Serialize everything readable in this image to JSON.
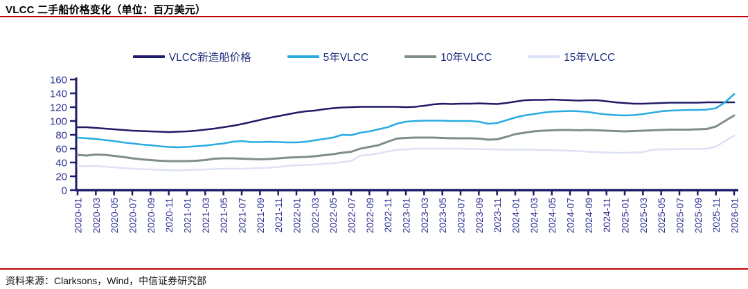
{
  "title": "VLCC 二手船价格变化（单位：百万美元）",
  "source_note": "资料来源：Clarksons，Wind，中信证券研究部",
  "colors": {
    "accent_red": "#c00000",
    "axis_line": "#1f1b67",
    "axis_text": "#2e3192",
    "legend_text": "#1f2d7b",
    "title_text": "#000000",
    "footer_text": "#111111",
    "background": "#ffffff"
  },
  "chart_data": {
    "type": "line",
    "title": "VLCC 二手船价格变化（单位：百万美元）",
    "xlabel": "",
    "ylabel": "",
    "unit": "百万美元",
    "ylim": [
      0,
      160
    ],
    "y_ticks": [
      0,
      20,
      40,
      60,
      80,
      100,
      120,
      140,
      160
    ],
    "x_tick_every": 2,
    "grid": false,
    "legend_position": "top-center",
    "x": [
      "2020-01",
      "2020-02",
      "2020-03",
      "2020-04",
      "2020-05",
      "2020-06",
      "2020-07",
      "2020-08",
      "2020-09",
      "2020-10",
      "2020-11",
      "2020-12",
      "2021-01",
      "2021-02",
      "2021-03",
      "2021-04",
      "2021-05",
      "2021-06",
      "2021-07",
      "2021-08",
      "2021-09",
      "2021-10",
      "2021-11",
      "2021-12",
      "2022-01",
      "2022-02",
      "2022-03",
      "2022-04",
      "2022-05",
      "2022-06",
      "2022-07",
      "2022-08",
      "2022-09",
      "2022-10",
      "2022-11",
      "2022-12",
      "2023-01",
      "2023-02",
      "2023-03",
      "2023-04",
      "2023-05",
      "2023-06",
      "2023-07",
      "2023-08",
      "2023-09",
      "2023-10",
      "2023-11",
      "2023-12",
      "2024-01",
      "2024-02",
      "2024-03",
      "2024-04",
      "2024-05",
      "2024-06",
      "2024-07",
      "2024-08",
      "2024-09",
      "2024-10",
      "2024-11",
      "2024-12",
      "2025-01",
      "2025-02",
      "2025-03",
      "2025-04",
      "2025-05",
      "2025-06",
      "2025-07",
      "2025-08",
      "2025-09",
      "2025-10",
      "2025-11",
      "2025-12",
      "2026-01"
    ],
    "series": [
      {
        "name": "VLCC新造船价格",
        "color": "#1f1b67",
        "values": [
          91,
          91,
          90,
          89,
          88,
          87,
          86,
          85.5,
          85,
          84.5,
          84,
          84.5,
          85,
          86,
          87.5,
          89,
          91,
          93,
          95.5,
          98.5,
          101.5,
          104.5,
          107,
          109.5,
          112,
          114,
          115,
          117,
          118.5,
          119.5,
          120,
          120.5,
          120.5,
          120.5,
          120.5,
          120.5,
          120,
          120.5,
          122,
          124,
          125,
          124.5,
          125,
          125,
          125.5,
          125,
          124.5,
          126,
          128,
          130,
          130.5,
          130.5,
          131,
          130.5,
          130,
          129.5,
          130,
          130,
          128.5,
          127,
          126,
          125,
          125,
          125.5,
          126,
          126.5,
          126.5,
          126.5,
          126.5,
          127,
          127,
          127,
          127
        ]
      },
      {
        "name": "5年VLCC",
        "color": "#29abe2",
        "values": [
          76,
          75,
          74,
          72.5,
          71,
          69,
          67.5,
          66,
          65,
          63.5,
          62.5,
          62,
          62.5,
          63.5,
          64.5,
          66,
          67.5,
          70,
          71,
          69.5,
          69.5,
          70,
          69.5,
          69,
          69,
          70,
          72,
          74,
          76,
          80,
          79.5,
          83,
          85,
          88,
          91,
          96,
          99,
          100,
          100.5,
          100.5,
          100.5,
          100,
          100,
          100,
          99,
          96,
          97,
          101,
          105,
          108,
          110,
          112,
          113.5,
          114,
          114.5,
          114,
          113,
          111,
          109.5,
          108.5,
          108,
          108.5,
          110,
          112,
          114,
          115,
          115.5,
          116,
          116,
          116.5,
          118.5,
          127,
          139
        ]
      },
      {
        "name": "10年VLCC",
        "color": "#7f8c8d",
        "values": [
          51,
          50,
          51.5,
          51,
          49.5,
          48,
          46,
          44.5,
          43.5,
          42.5,
          42,
          42,
          42,
          42.5,
          43.5,
          45.5,
          46,
          46,
          45.5,
          45,
          44.5,
          45,
          46,
          47,
          47.5,
          48,
          49,
          50.5,
          52,
          54,
          55.5,
          60,
          62.5,
          65,
          70,
          74.5,
          75.5,
          76,
          76,
          76,
          75.5,
          75,
          75,
          75,
          74.5,
          73,
          73.5,
          77,
          81,
          83,
          85,
          86,
          86.5,
          87,
          87,
          86.5,
          87,
          86.5,
          86,
          85.5,
          85,
          85.5,
          86,
          86.5,
          87,
          87.5,
          87.5,
          87.5,
          88,
          88.5,
          92,
          100,
          108
        ]
      },
      {
        "name": "15年VLCC",
        "color": "#dce1f6",
        "values": [
          35,
          34.5,
          35,
          34,
          33,
          32,
          31,
          30.5,
          30,
          29.5,
          29,
          28.5,
          29,
          29.5,
          30,
          30.5,
          31,
          31,
          31,
          31.5,
          32,
          32.5,
          33.5,
          35,
          36,
          36.5,
          37,
          38,
          39,
          40.5,
          42,
          50,
          51,
          53,
          56,
          58.5,
          59,
          60,
          60,
          60,
          60,
          60,
          60,
          59.5,
          59.5,
          59,
          59,
          58.5,
          58.5,
          58.5,
          58.5,
          58,
          58,
          57.5,
          57,
          56.5,
          55.5,
          55,
          54.5,
          54,
          54,
          54.5,
          55,
          58.5,
          59,
          59,
          59.5,
          59.5,
          59.5,
          60,
          63,
          71,
          79
        ]
      }
    ]
  }
}
